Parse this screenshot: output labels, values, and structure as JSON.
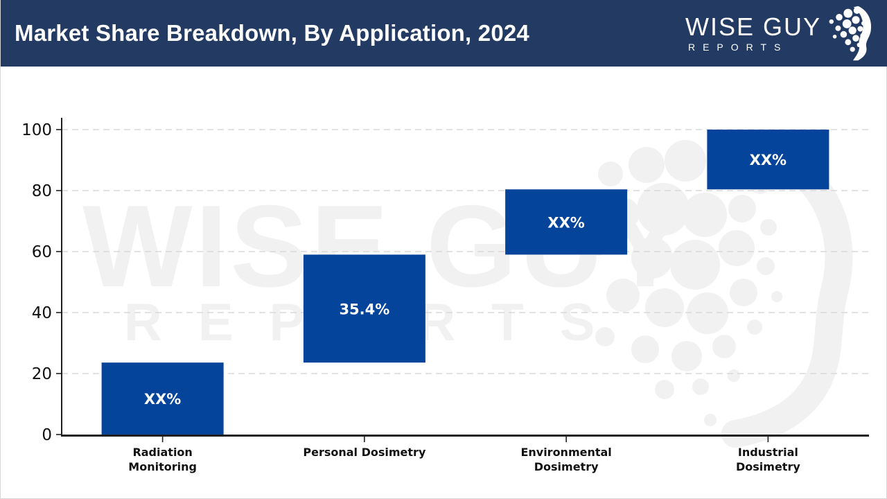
{
  "header": {
    "title": "Market Share Breakdown, By Application, 2024",
    "bg_color": "#233a63",
    "text_color": "#ffffff",
    "logo": {
      "line1": "WISE GUY",
      "line2": "REPORTS"
    }
  },
  "watermark": {
    "line1": "WISE GUY",
    "line2": "REPORTS",
    "color": "#f1f1f1"
  },
  "chart_data": {
    "type": "bar",
    "subtype": "waterfall",
    "title": "",
    "xlabel": "",
    "ylabel": "",
    "categories": [
      "Radiation Monitoring",
      "Personal Dosimetry",
      "Environmental Dosimetry",
      "Industrial Dosimetry"
    ],
    "category_label_lines": [
      [
        "Radiation",
        "Monitoring"
      ],
      [
        "Personal Dosimetry"
      ],
      [
        "Environmental",
        "Dosimetry"
      ],
      [
        "Industrial",
        "Dosimetry"
      ]
    ],
    "series": [
      {
        "name": "Market Share %",
        "starts": [
          0,
          23.6,
          59.0,
          80.4
        ],
        "ends": [
          23.6,
          59.0,
          80.4,
          100
        ],
        "values": [
          23.6,
          35.4,
          21.4,
          19.6
        ]
      }
    ],
    "bar_labels": [
      "XX%",
      "35.4%",
      "XX%",
      "XX%"
    ],
    "ylim": [
      0,
      100
    ],
    "yticks": [
      0,
      20,
      40,
      60,
      80,
      100
    ],
    "grid": "horizontal-dashed",
    "legend": "none",
    "colors": {
      "bar": "#04449a",
      "bar_label": "#ffffff",
      "grid": "#d9d9d9",
      "axis": "#1f1f1f",
      "tick_label": "#111111"
    }
  }
}
